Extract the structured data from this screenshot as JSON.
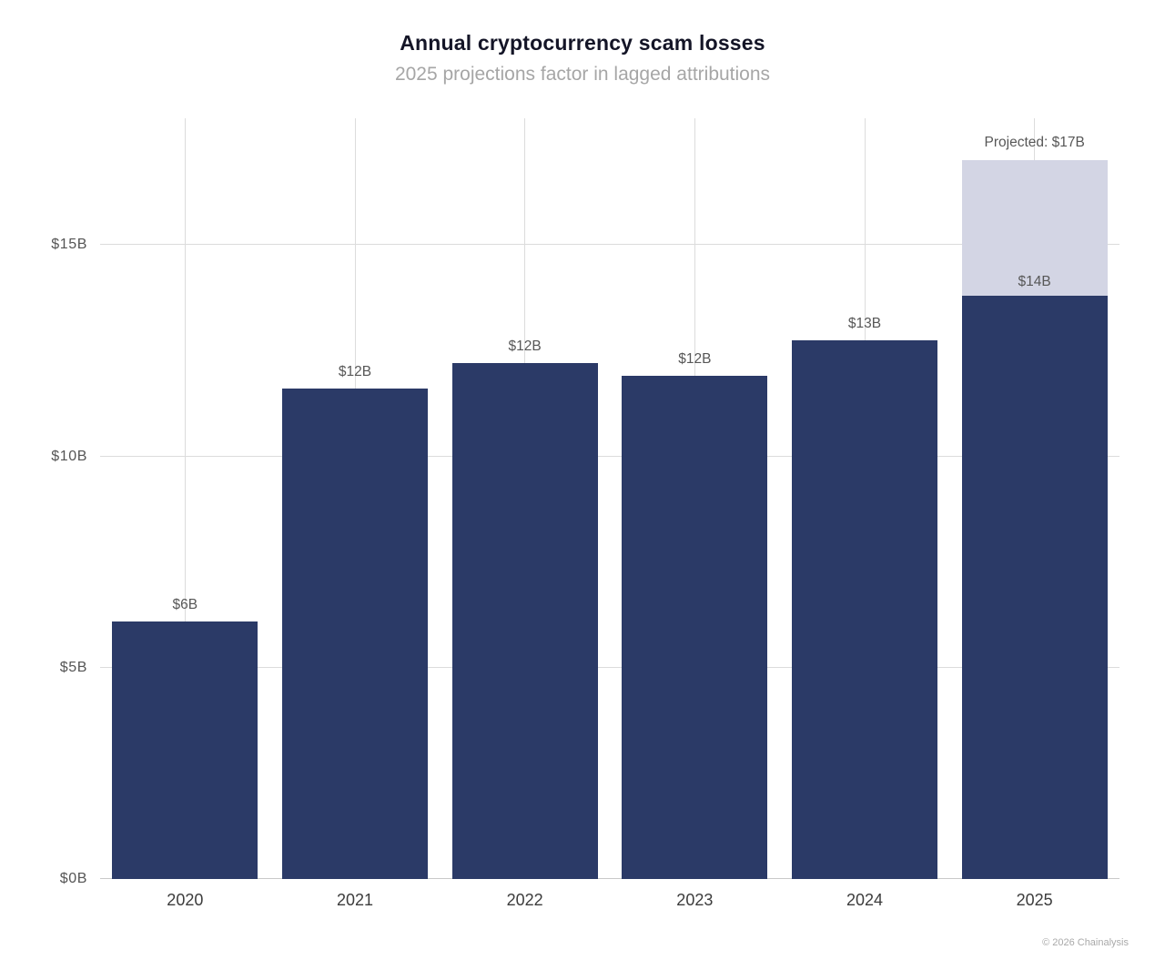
{
  "header": {
    "title": "Annual cryptocurrency scam losses",
    "subtitle": "2025 projections factor in lagged attributions"
  },
  "footer": {
    "credit": "© 2026 Chainalysis"
  },
  "chart_data": {
    "type": "bar",
    "title": "Annual cryptocurrency scam losses",
    "subtitle": "2025 projections factor in lagged attributions",
    "categories": [
      "2020",
      "2021",
      "2022",
      "2023",
      "2024",
      "2025"
    ],
    "values": [
      6.1,
      11.6,
      12.2,
      11.9,
      12.75,
      13.8
    ],
    "labels": [
      "$6B",
      "$12B",
      "$12B",
      "$12B",
      "$13B",
      "$14B"
    ],
    "projected": {
      "category": "2025",
      "total": 17,
      "label": "Projected: $17B"
    },
    "ylim": [
      0,
      18
    ],
    "yticks": [
      {
        "value": 0,
        "label": "$0B"
      },
      {
        "value": 5,
        "label": "$5B"
      },
      {
        "value": 10,
        "label": "$10B"
      },
      {
        "value": 15,
        "label": "$15B"
      }
    ],
    "grid": true,
    "legend": "none",
    "colors": {
      "bar": "#2b3a67",
      "projected": "#d3d5e4",
      "grid": "#dcdcdc"
    }
  }
}
